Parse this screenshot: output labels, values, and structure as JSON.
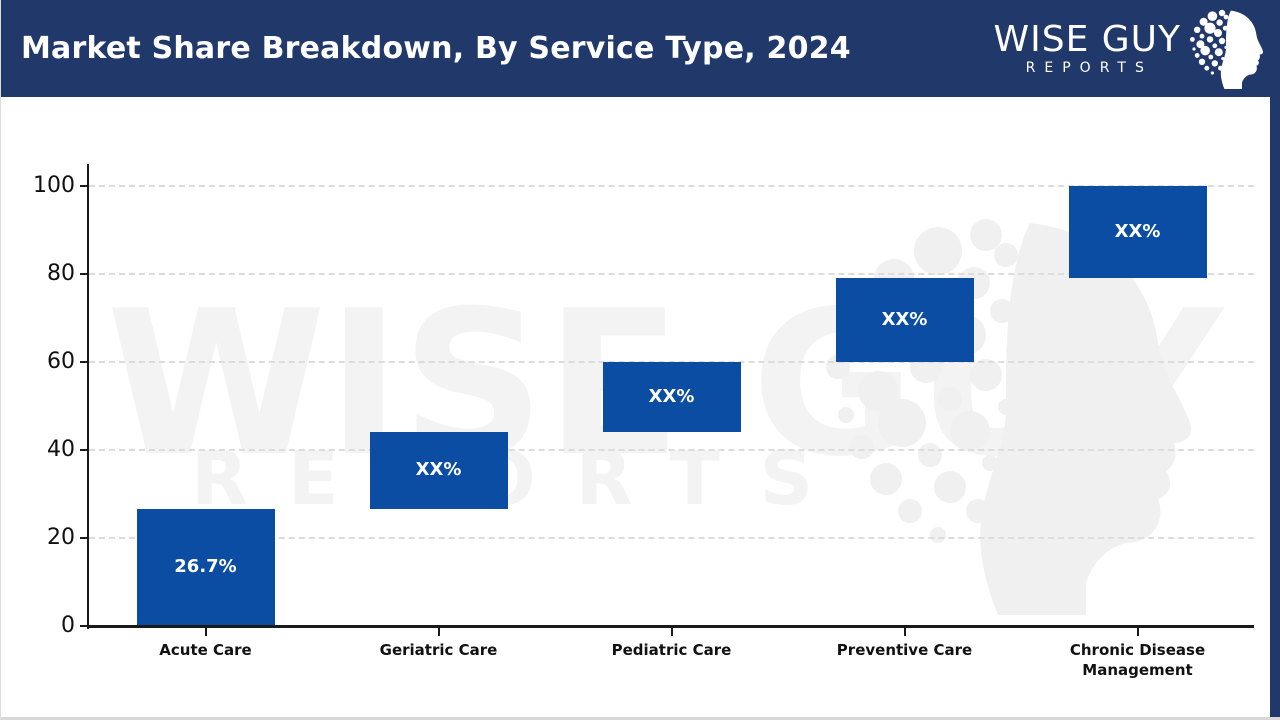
{
  "header": {
    "title": "Market Share Breakdown, By Service Type, 2024",
    "logo": {
      "line1": "WISE GUY",
      "line2": "REPORTS"
    }
  },
  "watermark": {
    "line1": "WISE GUY",
    "line2": "REPORTS"
  },
  "colors": {
    "header_bg": "#21386B",
    "bar": "#0B4DA2",
    "grid": "#dcdcdc",
    "watermark": "#f3f3f3",
    "bar_label_text": "#ffffff",
    "axis": "#1a1a1a"
  },
  "chart_data": {
    "type": "bar",
    "subtype": "waterfall",
    "title": "Market Share Breakdown, By Service Type, 2024",
    "categories": [
      "Acute Care",
      "Geriatric Care",
      "Pediatric Care",
      "Preventive Care",
      "Chronic Disease Management"
    ],
    "segments": [
      [
        0,
        26.7
      ],
      [
        26.7,
        44
      ],
      [
        44,
        60
      ],
      [
        60,
        79
      ],
      [
        79,
        100
      ]
    ],
    "bar_labels": [
      "26.7%",
      "XX%",
      "XX%",
      "XX%",
      "XX%"
    ],
    "y_ticks": [
      0,
      20,
      40,
      60,
      80,
      100
    ],
    "ylim": [
      0,
      105
    ],
    "xlabel": "",
    "ylabel": "",
    "grid": "horizontal-dashed",
    "legend": "none",
    "bar_color": "#0B4DA2"
  }
}
